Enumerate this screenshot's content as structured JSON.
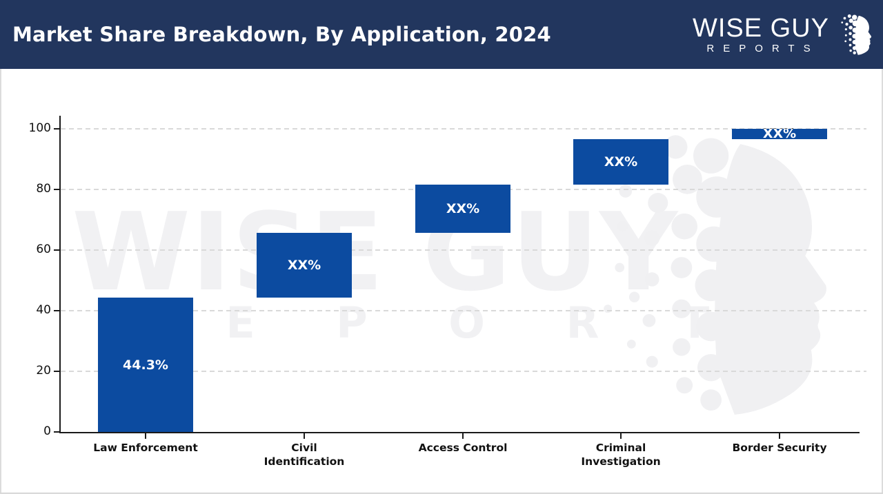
{
  "header": {
    "title": "Market Share Breakdown, By Application, 2024",
    "bg_color": "#22365e",
    "logo": {
      "line1": "WISE GUY",
      "line2": "REPORTS",
      "face_icon": "dotted-face-profile"
    }
  },
  "watermark": {
    "line1": "WISE GUY",
    "line2": "REPORTS",
    "color": "#f1f1f3"
  },
  "chart_data": {
    "type": "bar",
    "subtype": "floating-waterfall",
    "title": "",
    "xlabel": "",
    "ylabel": "",
    "ylim": [
      0,
      100
    ],
    "yticks": [
      0,
      20,
      40,
      60,
      80,
      100
    ],
    "grid": "horizontal-dashed",
    "legend": "none",
    "bar_color": "#0c4ba0",
    "bar_label_color": "#ffffff",
    "categories": [
      "Law Enforcement",
      "Civil\nIdentification",
      "Access Control",
      "Criminal\nInvestigation",
      "Border Security"
    ],
    "series": [
      {
        "name": "Law Enforcement",
        "start": 0,
        "end": 44.3,
        "label": "44.3%"
      },
      {
        "name": "Civil Identification",
        "start": 44.3,
        "end": 65.6,
        "label": "XX%"
      },
      {
        "name": "Access Control",
        "start": 65.6,
        "end": 81.7,
        "label": "XX%"
      },
      {
        "name": "Criminal Investigation",
        "start": 81.7,
        "end": 96.7,
        "label": "XX%"
      },
      {
        "name": "Border Security",
        "start": 96.7,
        "end": 100,
        "label": "XX%"
      }
    ]
  }
}
